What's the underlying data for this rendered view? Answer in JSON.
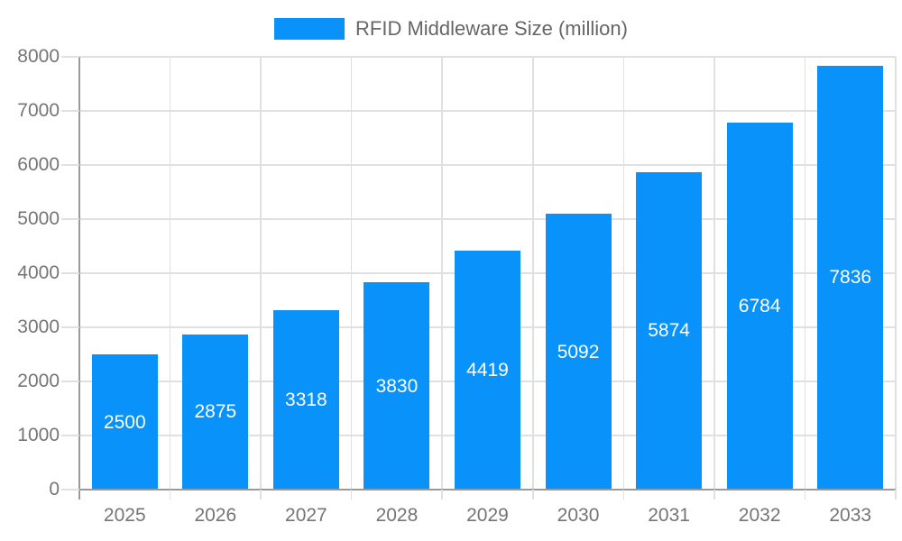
{
  "chart_data": {
    "type": "bar",
    "title": "RFID Middleware Size (million)",
    "legend": "RFID Middleware Size (million)",
    "legend_position": "top-center",
    "categories": [
      "2025",
      "2026",
      "2027",
      "2028",
      "2029",
      "2030",
      "2031",
      "2032",
      "2033"
    ],
    "values": [
      2500,
      2875,
      3318,
      3830,
      4419,
      5092,
      5874,
      6784,
      7836
    ],
    "xlabel": "",
    "ylabel": "",
    "ylim": [
      0,
      8000
    ],
    "y_ticks": [
      0,
      1000,
      2000,
      3000,
      4000,
      5000,
      6000,
      7000,
      8000
    ],
    "y_tick_labels": [
      "0",
      "1000",
      "2000",
      "3000",
      "4000",
      "5000",
      "6000",
      "7000",
      "8000"
    ],
    "grid": true,
    "bar_labels_shown": true
  },
  "colors": {
    "bar": "#0892fa",
    "grid": "#e0e0e0",
    "axis": "#999999",
    "tick_text": "#757575",
    "legend_text": "#666666",
    "bar_label": "#ffffff",
    "background": "#ffffff"
  }
}
